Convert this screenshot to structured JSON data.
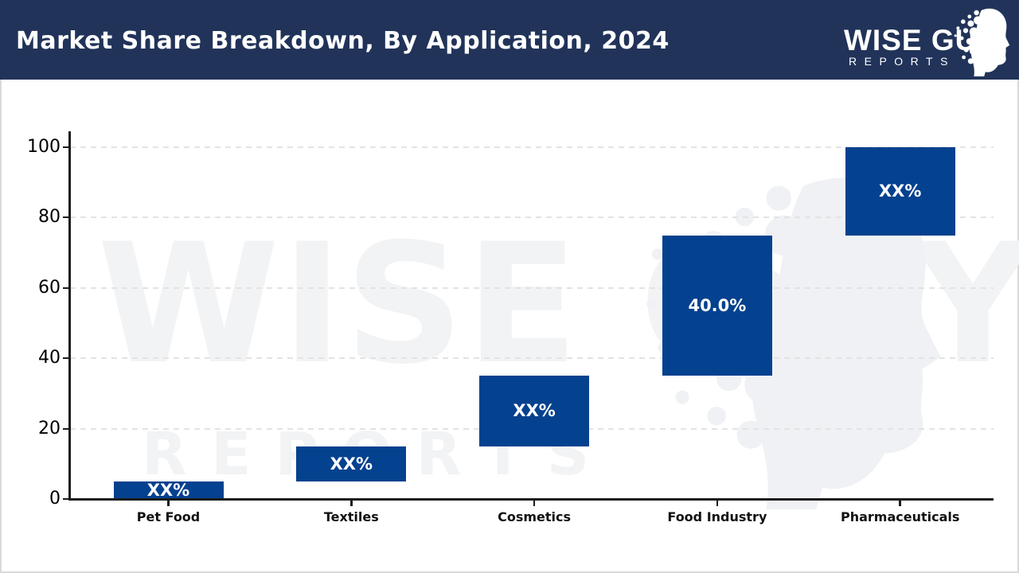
{
  "header": {
    "title": "Market Share Breakdown, By Application, 2024",
    "logo": {
      "line1": "WISE GUY",
      "line2": "REPORTS"
    }
  },
  "watermark": {
    "line1": "WISE GUY",
    "line2": "REPORTS"
  },
  "colors": {
    "header_bg": "#213359",
    "bar": "#04418f",
    "bar_label": "#ffffff",
    "axis": "#1c1c1c",
    "gridline": "#e3e3e3",
    "watermark": "#f2f3f5"
  },
  "chart_data": {
    "type": "bar",
    "subtype": "waterfall",
    "title": "Market Share Breakdown, By Application, 2024",
    "xlabel": "",
    "ylabel": "",
    "ylim": [
      0,
      105
    ],
    "yticks": [
      0,
      20,
      40,
      60,
      80,
      100
    ],
    "grid": "horizontal-dashed",
    "legend": "none",
    "categories": [
      "Pet Food",
      "Textiles",
      "Cosmetics",
      "Food Industry",
      "Pharmaceuticals"
    ],
    "segments": [
      {
        "category": "Pet Food",
        "start": 0,
        "end": 5,
        "value": 5,
        "label": "XX%"
      },
      {
        "category": "Textiles",
        "start": 5,
        "end": 15,
        "value": 10,
        "label": "XX%"
      },
      {
        "category": "Cosmetics",
        "start": 15,
        "end": 35,
        "value": 20,
        "label": "XX%"
      },
      {
        "category": "Food Industry",
        "start": 35,
        "end": 75,
        "value": 40,
        "label": "40.0%"
      },
      {
        "category": "Pharmaceuticals",
        "start": 75,
        "end": 100,
        "value": 25,
        "label": "XX%"
      }
    ]
  }
}
